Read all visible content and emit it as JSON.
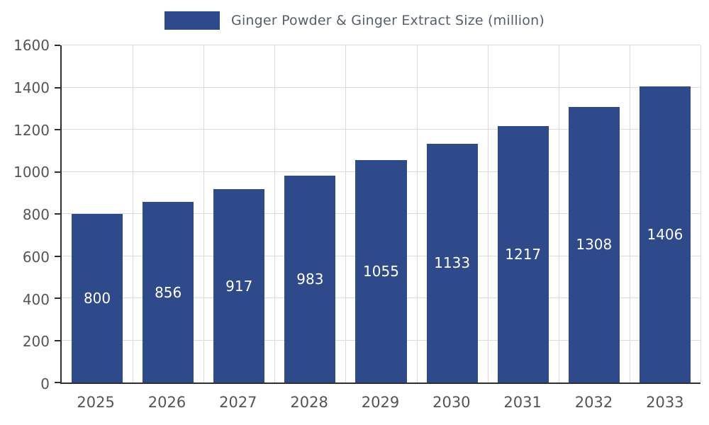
{
  "chart_data": {
    "type": "bar",
    "title": "Ginger Powder & Ginger Extract Size (million)",
    "categories": [
      "2025",
      "2026",
      "2027",
      "2028",
      "2029",
      "2030",
      "2031",
      "2032",
      "2033"
    ],
    "values": [
      800,
      856,
      917,
      983,
      1055,
      1133,
      1217,
      1308,
      1406
    ],
    "xlabel": "",
    "ylabel": "",
    "ylim": [
      0,
      1600
    ],
    "yticks": [
      0,
      200,
      400,
      600,
      800,
      1000,
      1200,
      1400,
      1600
    ],
    "grid": true,
    "legend_position": "top",
    "colors": {
      "bar": "#2F4A8A",
      "value_label": "#ffffff",
      "gridline": "#dcdcdc",
      "axis": "#2f2f2f",
      "tick_label": "#555555",
      "title": "#55606e"
    }
  }
}
